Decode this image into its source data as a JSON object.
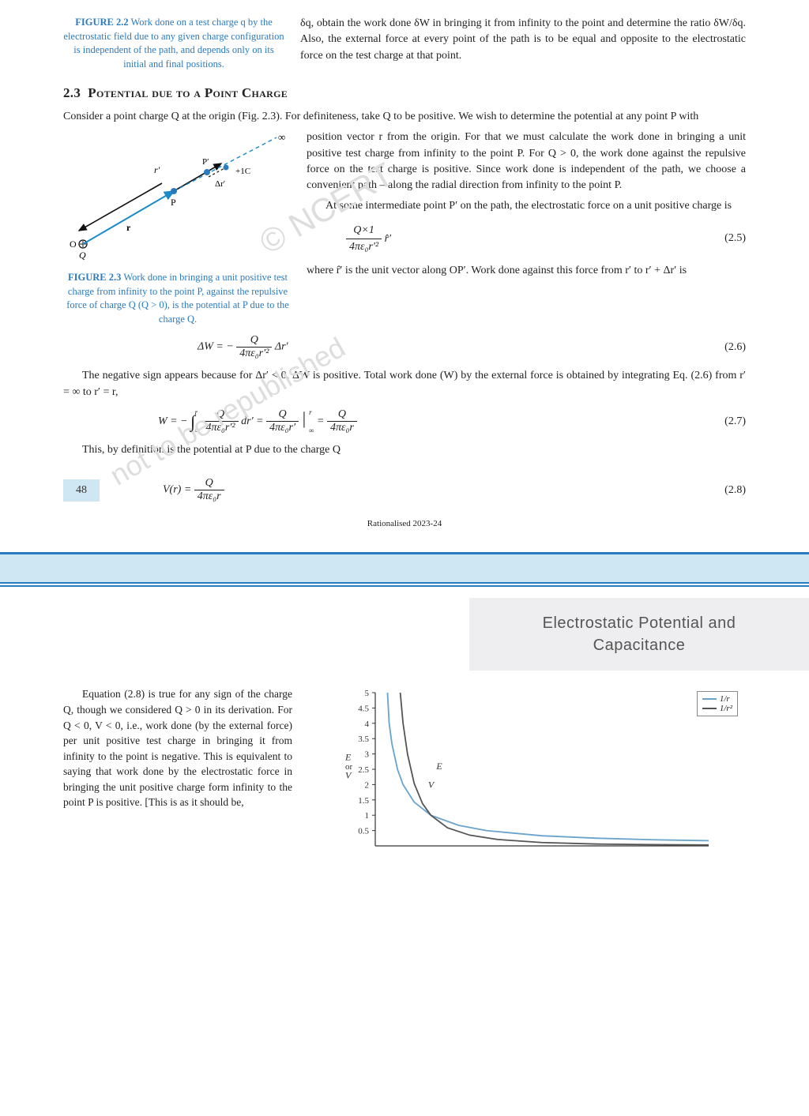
{
  "fig22": {
    "label": "FIGURE 2.2",
    "caption": "Work done on a test charge q by the electrostatic field due to any given charge configuration is independent of the path, and depends only on its initial and final positions."
  },
  "top_paragraph": "δq, obtain the work done δW in bringing it from infinity to the point and determine the ratio δW/δq. Also, the external force at every point of the path is to be equal and opposite to the electrostatic force on the test charge at that point.",
  "section": {
    "number": "2.3",
    "title": "Potential due to a Point Charge"
  },
  "intro": "Consider a point charge Q at the origin (Fig. 2.3). For definiteness, take Q to be positive. We wish to determine the potential at any point P with",
  "mid_body1": "position vector r from the origin. For that we must calculate the work done in bringing a unit positive test charge from infinity to the point P. For Q > 0, the work done against the repulsive force on the test charge is positive. Since work done is independent of the path, we choose a convenient path – along the radial direction from infinity to the point P.",
  "mid_body2": "At some intermediate point P′ on the path, the electrostatic force on a unit positive charge is",
  "fig23": {
    "label": "FIGURE 2.3",
    "caption": "Work done in bringing a unit positive test charge from infinity to the point P, against the repulsive force of charge Q (Q > 0), is the potential at P due to the charge Q.",
    "labels": {
      "O": "O",
      "Q": "Q",
      "P": "P",
      "Pprime": "P′",
      "r": "r",
      "rprime": "r′",
      "dr": "Δr′",
      "charge": "+1C",
      "inf": "∞"
    },
    "colors": {
      "r_line": "#1a8acb",
      "charge_dot": "#2b7bbf",
      "arrow": "#111"
    }
  },
  "eq25": {
    "num": "(2.5)",
    "lhs_num": "Q×1",
    "lhs_den": "4πε₀r′²",
    "tail": "r̂′"
  },
  "after25": "where r̂′ is the unit vector along OP′. Work done against this force from r′ to r′ + Δr′ is",
  "eq26": {
    "num": "(2.6)",
    "lhs": "ΔW = −",
    "frac_num": "Q",
    "frac_den": "4πε₀r′²",
    "tail": "Δr′"
  },
  "after26": "The negative sign appears because for Δr′ < 0, ΔW is positive. Total work done (W) by the external force is obtained by integrating Eq. (2.6) from r′ = ∞ to r′ = r,",
  "eq27": {
    "num": "(2.7)",
    "text_parts": {
      "p1": "W = −",
      "int": "∫",
      "limits_top": "r",
      "limits_bot": "∞",
      "frac1_num": "Q",
      "frac1_den": "4πε₀r′²",
      "dr": "dr′ =",
      "frac2_num": "Q",
      "frac2_den": "4πε₀r′",
      "bar": " |",
      "bar_top": "r",
      "bar_bot": "∞",
      "eq": " = ",
      "frac3_num": "Q",
      "frac3_den": "4πε₀r"
    }
  },
  "after27": "This, by definition is the potential at P due to the charge Q",
  "eq28": {
    "num": "(2.8)",
    "lhs": "V(r) = ",
    "frac_num": "Q",
    "frac_den": "4πε₀r"
  },
  "page_number": "48",
  "footer": "Rationalised 2023-24",
  "chapter_title": "Electrostatic Potential and Capacitance",
  "bottom_text": "Equation (2.8) is true for any sign of the charge Q, though we considered Q > 0 in its derivation. For Q < 0, V < 0, i.e., work done (by the external force) per unit positive test charge in bringing it from infinity to the point is negative. This is equivalent to saying that work done by the electrostatic force in bringing the unit positive charge form infinity to the point P is positive. [This is as it should be,",
  "chart": {
    "type": "line",
    "ylabel": "E or V",
    "ylim": [
      0,
      5
    ],
    "yticks": [
      0.5,
      1,
      1.5,
      2,
      2.5,
      3,
      3.5,
      4,
      4.5,
      5
    ],
    "xlim": [
      0,
      6
    ],
    "series": [
      {
        "name": "1/r",
        "label": "1/r",
        "color": "#6aa3cc",
        "points": [
          [
            0.22,
            5
          ],
          [
            0.25,
            4
          ],
          [
            0.3,
            3.33
          ],
          [
            0.4,
            2.5
          ],
          [
            0.5,
            2
          ],
          [
            0.7,
            1.43
          ],
          [
            1,
            1
          ],
          [
            1.5,
            0.67
          ],
          [
            2,
            0.5
          ],
          [
            3,
            0.33
          ],
          [
            4,
            0.25
          ],
          [
            5,
            0.2
          ],
          [
            6,
            0.17
          ]
        ]
      },
      {
        "name": "1/r2",
        "label": "1/r²",
        "color": "#555555",
        "points": [
          [
            0.45,
            5
          ],
          [
            0.5,
            4
          ],
          [
            0.58,
            3
          ],
          [
            0.7,
            2.04
          ],
          [
            0.85,
            1.38
          ],
          [
            1,
            1
          ],
          [
            1.3,
            0.59
          ],
          [
            1.7,
            0.35
          ],
          [
            2.2,
            0.21
          ],
          [
            3,
            0.11
          ],
          [
            4,
            0.06
          ],
          [
            5,
            0.04
          ],
          [
            6,
            0.03
          ]
        ]
      }
    ],
    "inline_labels": {
      "E": "E",
      "V": "V"
    },
    "background": "#ffffff",
    "axis_color": "#333333",
    "tick_fontsize": 11
  },
  "watermark1": "© NCERT",
  "watermark2": "not to be republished"
}
